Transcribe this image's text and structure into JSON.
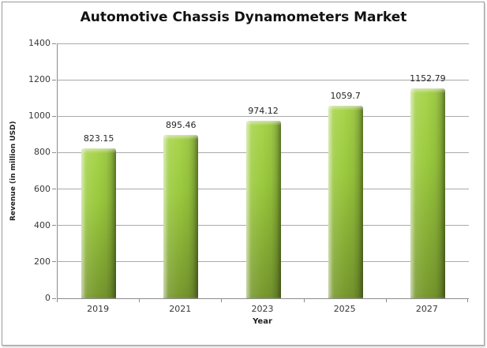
{
  "chart_data": {
    "type": "bar",
    "title": "Automotive Chassis Dynamometers Market",
    "categories": [
      "2019",
      "2021",
      "2023",
      "2025",
      "2027"
    ],
    "values": [
      823.15,
      895.46,
      974.12,
      1059.7,
      1152.79
    ],
    "value_labels": [
      "823.15",
      "895.46",
      "974.12",
      "1059.7",
      "1152.79"
    ],
    "xlabel": "Year",
    "ylabel": "Revenue (in million USD)",
    "ylim": [
      0,
      1400
    ],
    "ytick_step": 200,
    "grid": true,
    "legend": false,
    "bar_color": "#9bca3e",
    "bar_color_top": "#a7d44b",
    "bar_color_bottom": "#78992f",
    "bar_highlight": "#c9e67c",
    "bar_shadow": "#6c8a2b",
    "gridline_color": "#aaaaaa",
    "axis_color": "#8c8c8c",
    "text_color": "#383838",
    "title_color": "#121212",
    "background_color": "#ffffff"
  }
}
